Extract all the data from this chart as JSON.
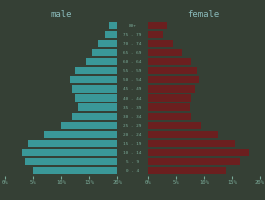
{
  "title_male": "male",
  "title_female": "female",
  "background_color": "#354035",
  "male_color": "#3a9898",
  "female_color": "#6b1f1f",
  "age_groups": [
    "0 - 4",
    "5 - 9",
    "10 - 14",
    "15 - 19",
    "20 - 24",
    "25 - 29",
    "30 - 34",
    "35 - 39",
    "40 - 44",
    "45 - 49",
    "50 - 54",
    "55 - 59",
    "60 - 64",
    "65 - 69",
    "70 - 74",
    "75 - 79",
    "80+"
  ],
  "male_values": [
    15.0,
    16.5,
    17.0,
    16.0,
    13.0,
    10.0,
    8.0,
    7.0,
    7.5,
    8.0,
    8.5,
    7.5,
    5.5,
    4.5,
    3.5,
    2.2,
    1.5
  ],
  "female_values": [
    14.0,
    16.5,
    18.0,
    15.5,
    12.5,
    9.5,
    7.8,
    7.5,
    7.8,
    8.5,
    9.2,
    8.8,
    7.8,
    6.2,
    4.5,
    2.8,
    3.5
  ],
  "xlim": 20,
  "tick_label_color": "#7aaa98",
  "title_color": "#8ababa",
  "bar_gap_color": "#354035",
  "xtick_vals": [
    0,
    5,
    10,
    15,
    20
  ],
  "xtick_labels_male": [
    "20%",
    "15%",
    "10%",
    "5%",
    "0%"
  ],
  "xtick_labels_female": [
    "0%",
    "5%",
    "10%",
    "15%",
    "20%"
  ]
}
